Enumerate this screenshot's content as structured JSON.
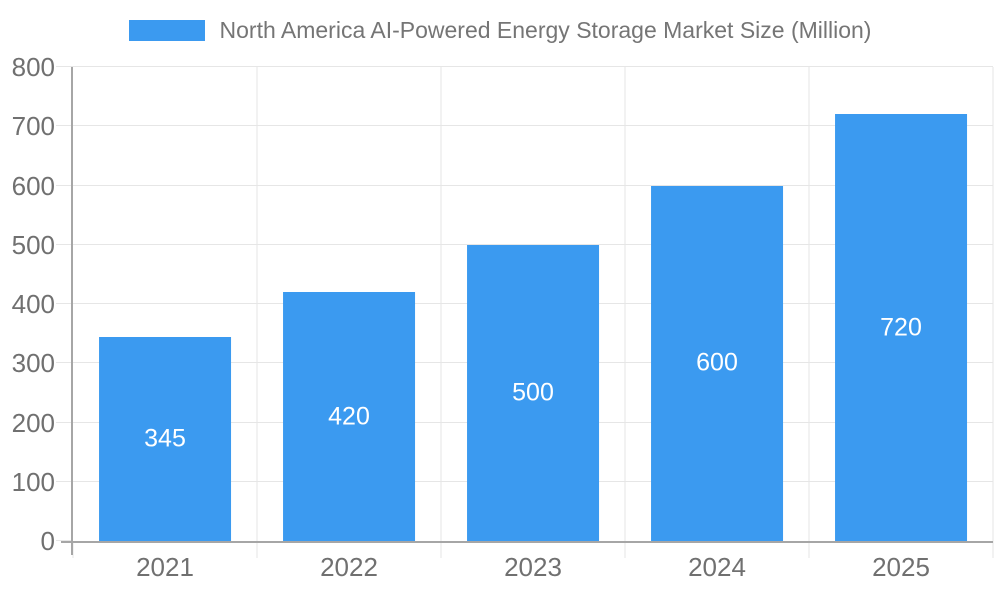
{
  "legend": {
    "label": "North America AI-Powered Energy Storage Market Size (Million)"
  },
  "chart_data": {
    "type": "bar",
    "title": "North America AI-Powered Energy Storage Market Size (Million)",
    "categories": [
      "2021",
      "2022",
      "2023",
      "2024",
      "2025"
    ],
    "values": [
      345,
      420,
      500,
      600,
      720
    ],
    "value_labels": [
      "345",
      "420",
      "500",
      "600",
      "720"
    ],
    "xlabel": "",
    "ylabel": "",
    "ylim": [
      0,
      800
    ],
    "ytick_step": 100,
    "ytick_labels": [
      "0",
      "100",
      "200",
      "300",
      "400",
      "500",
      "600",
      "700",
      "800"
    ],
    "legend_position": "top-center",
    "grid": true,
    "colors": {
      "bar": "#3b9af0",
      "value_label_text": "#ffffff"
    }
  }
}
